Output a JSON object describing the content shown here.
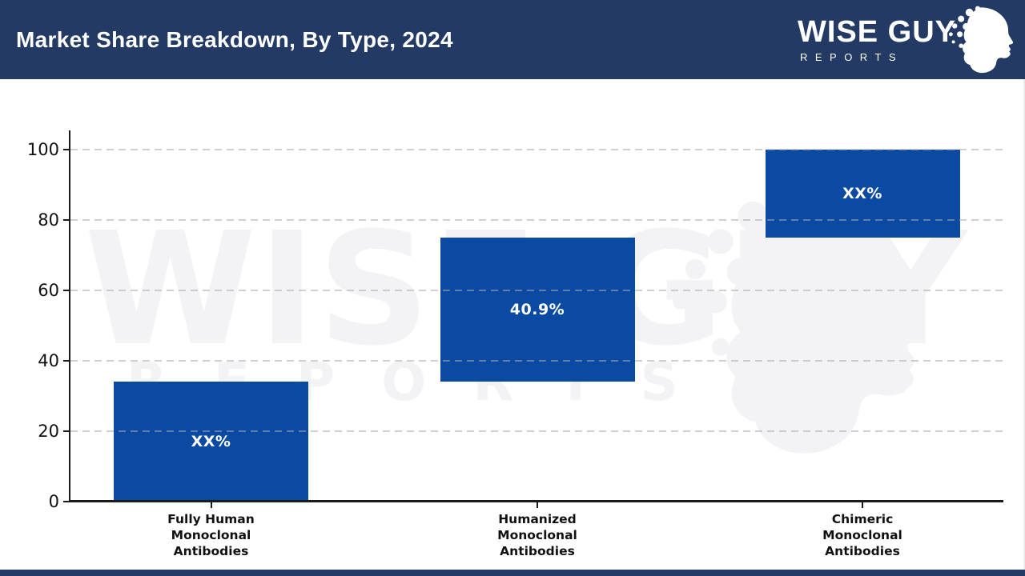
{
  "header": {
    "title": "Market Share Breakdown, By Type, 2024"
  },
  "logo": {
    "line1": "WISE GUY",
    "line2": "REPORTS"
  },
  "watermark": {
    "line1": "WISE GUY",
    "line2": "REPORTS"
  },
  "colors": {
    "header_bg": "#233a64",
    "footer_bg": "#233a64",
    "bar": "#0b4aa2",
    "axis": "#1a1a1a",
    "grid": "#d9d9d9",
    "watermark": "#f3f3f6",
    "bar_label": "#ffffff",
    "title_text": "#ffffff"
  },
  "chart_data": {
    "type": "bar",
    "subtype": "stacked-waterfall (floating segment bars)",
    "title": "Market Share Breakdown, By Type, 2024",
    "categories": [
      "Fully Human\nMonoclonal\nAntibodies",
      "Humanized\nMonoclonal\nAntibodies",
      "Chimeric\nMonoclonal\nAntibodies"
    ],
    "segments": [
      {
        "category": "Fully Human Monoclonal Antibodies",
        "start": 0,
        "end": 34.1,
        "value": 34.1,
        "label": "XX%"
      },
      {
        "category": "Humanized Monoclonal Antibodies",
        "start": 34.1,
        "end": 75,
        "value": 40.9,
        "label": "40.9%"
      },
      {
        "category": "Chimeric Monoclonal Antibodies",
        "start": 75,
        "end": 100,
        "value": 25,
        "label": "XX%"
      }
    ],
    "yticks": [
      "0",
      "20",
      "40",
      "60",
      "80",
      "100"
    ],
    "ylim": [
      0,
      100
    ],
    "xlabel": "",
    "ylabel": "",
    "grid": "horizontal-dashed",
    "legend": "none"
  }
}
